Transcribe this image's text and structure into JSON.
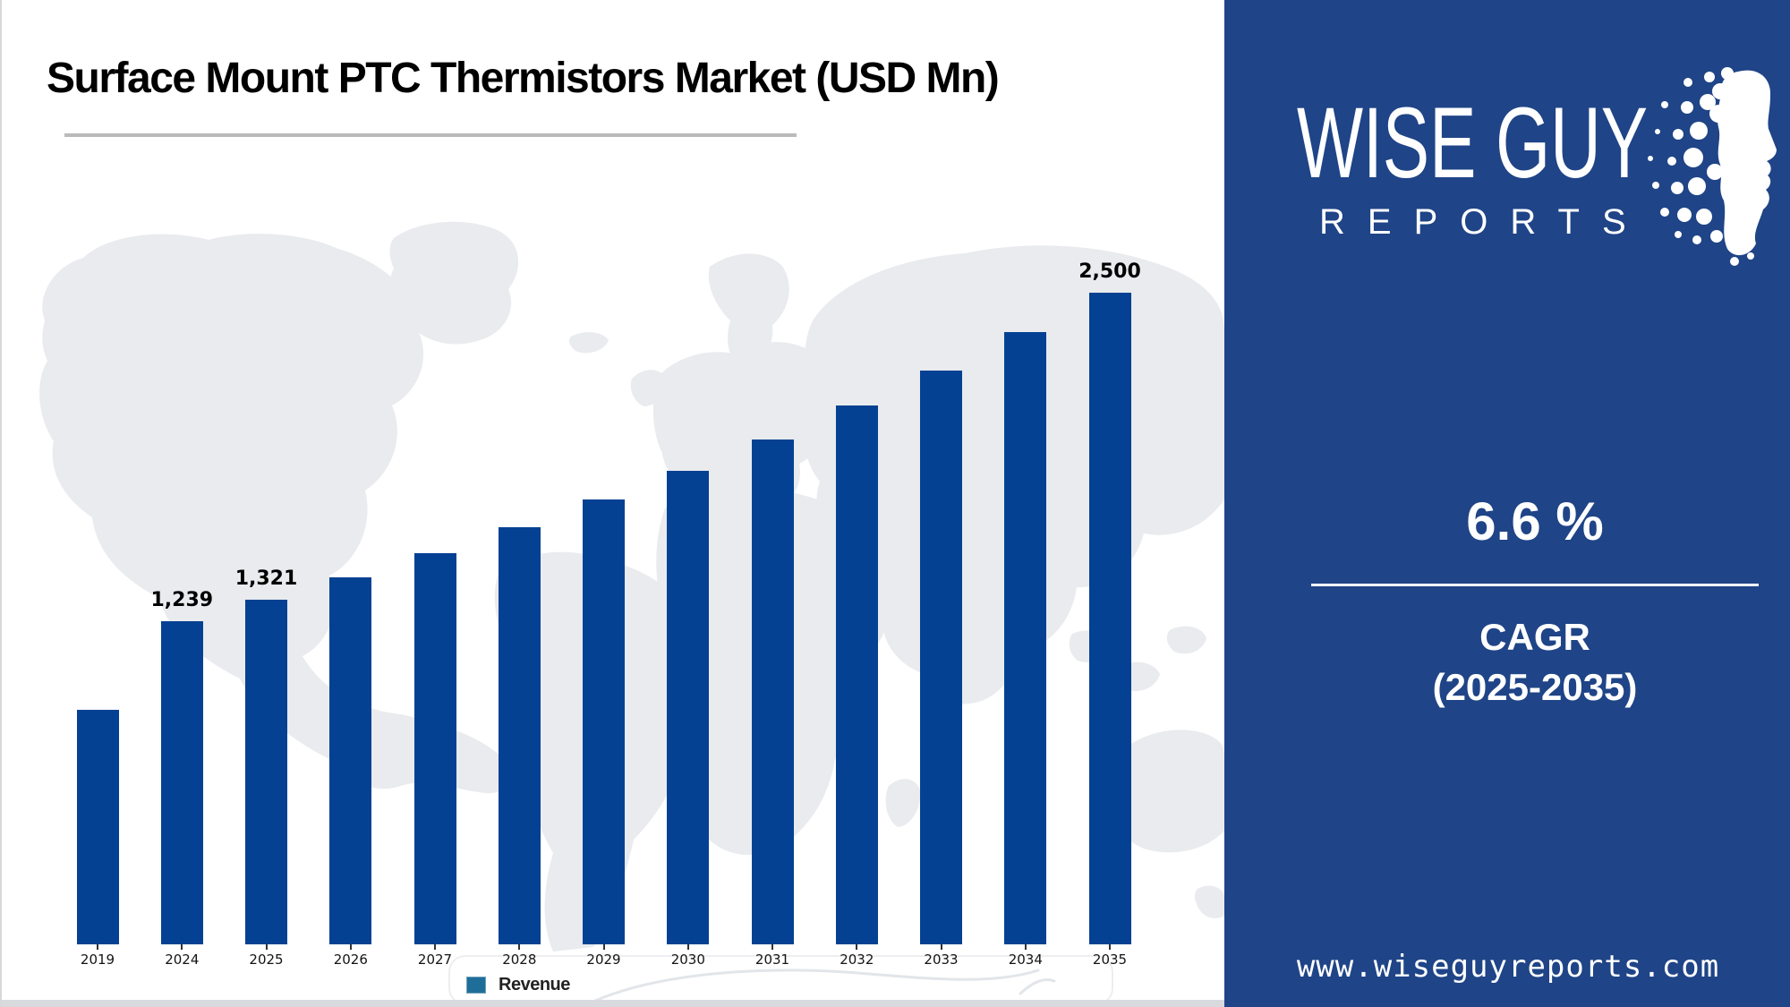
{
  "title": "Surface Mount PTC Thermistors Market (USD Mn)",
  "chart_data": {
    "type": "bar",
    "title": "Surface Mount PTC Thermistors Market (USD Mn)",
    "unit": "USD Mn",
    "categories": [
      "2019",
      "2024",
      "2025",
      "2026",
      "2027",
      "2028",
      "2029",
      "2030",
      "2031",
      "2032",
      "2033",
      "2034",
      "2035"
    ],
    "values": [
      900,
      1239,
      1321,
      1408,
      1501,
      1600,
      1706,
      1818,
      1938,
      2066,
      2202,
      2348,
      2500
    ],
    "value_labels": [
      "",
      "1,239",
      "1,321",
      "",
      "",
      "",
      "",
      "",
      "",
      "",
      "",
      "",
      "2,500"
    ],
    "series_name": "Revenue",
    "bar_color": "#054193",
    "ylim": [
      0,
      2500
    ],
    "grid": false,
    "legend_position": "bottom-center",
    "background_watermark": "world-map"
  },
  "legend": {
    "label": "Revenue",
    "swatch_color": "#1f6e99"
  },
  "side_panel": {
    "background_color": "#1f4487",
    "logo": {
      "line1": "WISE GUY",
      "line2": "REPORTS",
      "icon": "dotted-head-profile"
    },
    "cagr_value": "6.6 %",
    "cagr_label": "CAGR",
    "cagr_range": "(2025-2035)",
    "website": "www.wiseguyreports.com"
  }
}
